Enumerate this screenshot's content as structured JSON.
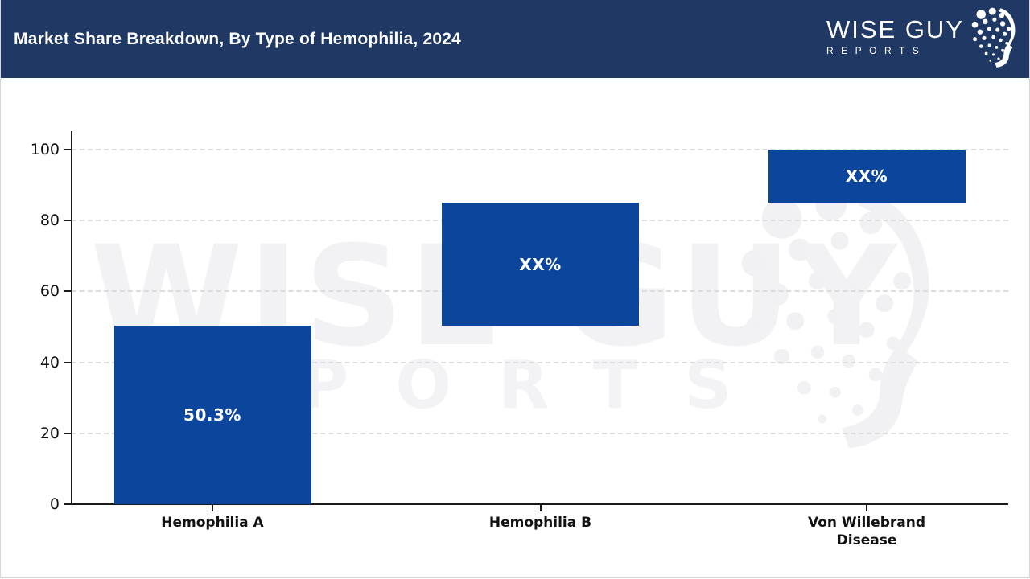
{
  "header": {
    "title": "Market Share Breakdown, By Type of Hemophilia, 2024",
    "logo": {
      "line1": "WISE GUY",
      "line2": "REPORTS"
    }
  },
  "watermark": {
    "line1": "WISE GUY",
    "line2": "REPORTS"
  },
  "chart_data": {
    "type": "bar",
    "subtype": "floating-segments-waterfall",
    "title": "Market Share Breakdown, By Type of Hemophilia, 2024",
    "categories": [
      "Hemophilia A",
      "Hemophilia B",
      "Von Willebrand Disease"
    ],
    "segments": [
      {
        "category": "Hemophilia A",
        "start": 0,
        "end": 50.3,
        "label": "50.3%"
      },
      {
        "category": "Hemophilia B",
        "start": 50.3,
        "end": 85,
        "label": "XX%"
      },
      {
        "category": "Von Willebrand Disease",
        "start": 85,
        "end": 100,
        "label": "XX%"
      }
    ],
    "xlabel": "",
    "ylabel": "",
    "yticks": [
      0,
      20,
      40,
      60,
      80,
      100
    ],
    "ylim": [
      0,
      105
    ],
    "grid": "horizontal-dashed",
    "legend": "none",
    "colors": {
      "bar": "#0B459C",
      "bar_label": "#FFFFFF",
      "grid": "#DCDCDC",
      "axis": "#1A1A1A",
      "tick_label": "#111111",
      "header_bg": "#1F3864",
      "header_text": "#FFFFFF",
      "watermark": "#F2F2F4"
    }
  }
}
